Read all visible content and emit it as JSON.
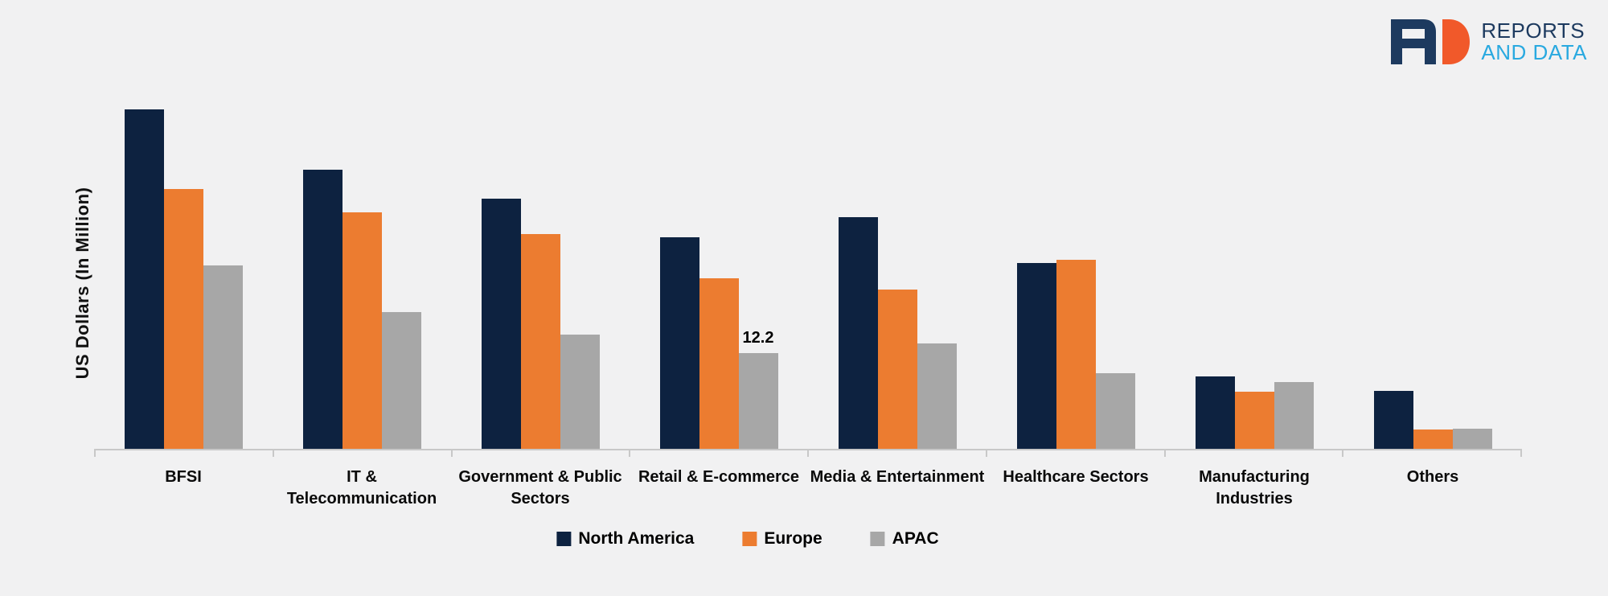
{
  "page": {
    "background": "#f1f1f2",
    "text_color": "#000000"
  },
  "logo": {
    "name": "Reports and Data",
    "line1": "REPORTS",
    "line2": "AND DATA",
    "line1_color": "#1d3a5f",
    "line2_color": "#29a9e0",
    "mark_r_color": "#1d3a5f",
    "mark_d_color": "#f1592a"
  },
  "chart_data": {
    "type": "bar",
    "title": "",
    "xlabel": "",
    "ylabel": "US Dollars (In Million)",
    "ylim": [
      0,
      45
    ],
    "grid": false,
    "legend_position": "bottom",
    "axis_color": "#c8c8c8",
    "categories": [
      "BFSI",
      "IT & Telecommunication",
      "Government & Public Sectors",
      "Retail & E-commerce",
      "Media & Entertainment",
      "Healthcare Sectors",
      "Manufacturing Industries",
      "Others"
    ],
    "category_lines": [
      [
        "BFSI"
      ],
      [
        "IT &",
        "Telecommunication"
      ],
      [
        "Government & Public",
        "Sectors"
      ],
      [
        "Retail & E-commerce"
      ],
      [
        "Media & Entertainment"
      ],
      [
        "Healthcare Sectors"
      ],
      [
        "Manufacturing",
        "Industries"
      ],
      [
        "Others"
      ]
    ],
    "series": [
      {
        "name": "North America",
        "color": "#0d2240",
        "values": [
          43.2,
          35.5,
          31.8,
          26.9,
          29.5,
          23.6,
          9.2,
          7.4
        ]
      },
      {
        "name": "Europe",
        "color": "#ec7c30",
        "values": [
          33.0,
          30.1,
          27.3,
          21.7,
          20.3,
          24.0,
          7.3,
          2.5
        ]
      },
      {
        "name": "APAC",
        "color": "#a7a7a7",
        "values": [
          23.3,
          17.4,
          14.5,
          12.2,
          13.4,
          9.6,
          8.5,
          2.6
        ]
      }
    ],
    "data_labels": [
      {
        "category_index": 3,
        "series_index": 2,
        "text": "12.2"
      }
    ]
  }
}
